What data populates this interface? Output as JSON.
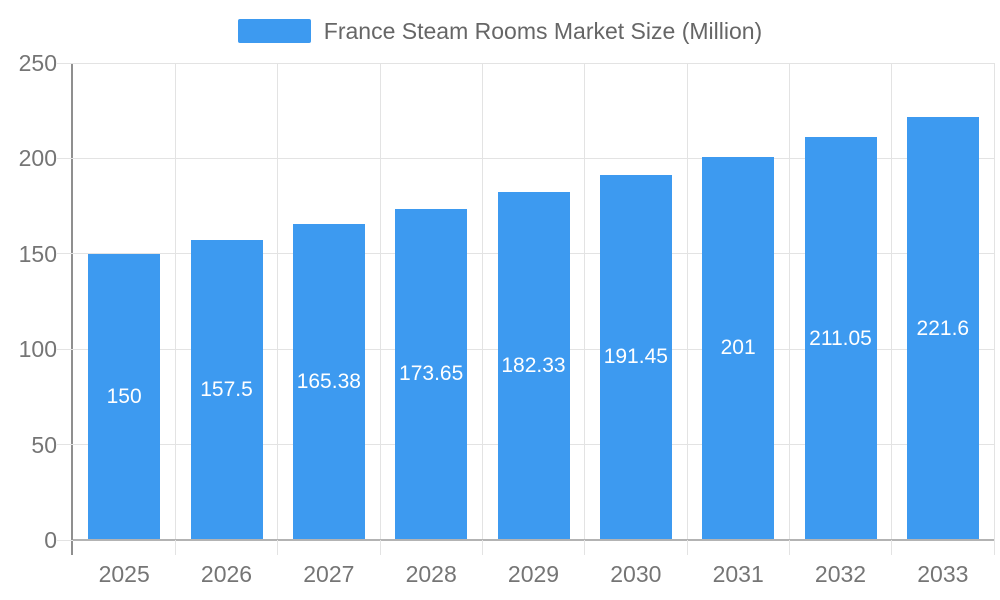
{
  "legend": {
    "label": "France Steam Rooms Market Size (Million)"
  },
  "chart_data": {
    "type": "bar",
    "title": "France Steam Rooms Market Size (Million)",
    "categories": [
      "2025",
      "2026",
      "2027",
      "2028",
      "2029",
      "2030",
      "2031",
      "2032",
      "2033"
    ],
    "values": [
      150,
      157.5,
      165.38,
      173.65,
      182.33,
      191.45,
      201,
      211.05,
      221.6
    ],
    "value_labels": [
      "150",
      "157.5",
      "165.38",
      "173.65",
      "182.33",
      "191.45",
      "201",
      "211.05",
      "221.6"
    ],
    "xlabel": "",
    "ylabel": "",
    "ylim": [
      0,
      250
    ],
    "yticks": [
      0,
      50,
      100,
      150,
      200,
      250
    ],
    "grid": true,
    "legend_position": "top",
    "value_label_position": "inside-center",
    "colors": {
      "bar": "#3D9AF0",
      "grid_line": "#E3E3E3",
      "x_axis_line": "#B3B3B3",
      "y_axis_line": "#8F8F8F",
      "axis_label": "#757575",
      "legend_text": "#666666",
      "value_label": "#FFFFFF",
      "background": "#FFFFFF"
    }
  }
}
